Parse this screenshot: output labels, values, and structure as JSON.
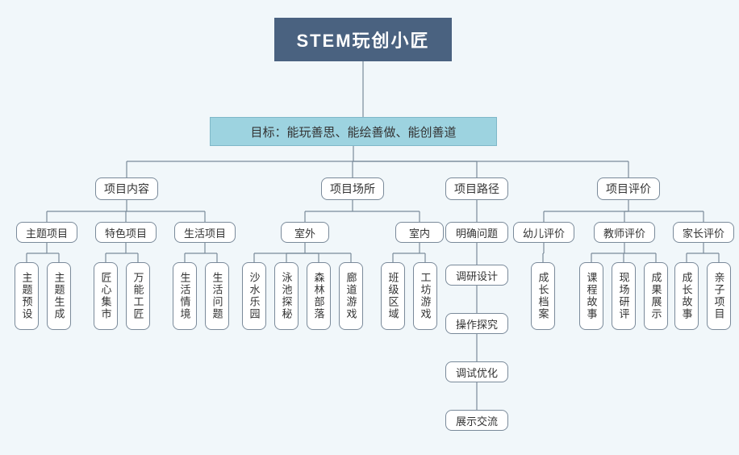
{
  "type": "tree",
  "background_color": "#f1f7fa",
  "connector_color": "#7a8a9a",
  "root": {
    "label": "STEM玩创小匠",
    "bg": "#4a6280",
    "fg": "#ffffff",
    "fontsize": 22
  },
  "goal": {
    "label": "目标：能玩善思、能绘善做、能创善道",
    "bg": "#9dd3e0",
    "fg": "#333333",
    "fontsize": 15
  },
  "categories": [
    {
      "label": "项目内容",
      "children": [
        {
          "label": "主题项目",
          "leaves": [
            "主题预设",
            "主题生成"
          ]
        },
        {
          "label": "特色项目",
          "leaves": [
            "匠心集市",
            "万能工匠"
          ]
        },
        {
          "label": "生活项目",
          "leaves": [
            "生活情境",
            "生活问题"
          ]
        }
      ]
    },
    {
      "label": "项目场所",
      "children": [
        {
          "label": "室外",
          "leaves": [
            "沙水乐园",
            "泳池探秘",
            "森林部落",
            "廊道游戏"
          ]
        },
        {
          "label": "室内",
          "leaves": [
            "班级区域",
            "工坊游戏"
          ]
        }
      ]
    },
    {
      "label": "项目路径",
      "children": [
        {
          "label": "明确问题",
          "chain": [
            "调研设计",
            "操作探究",
            "调试优化",
            "展示交流"
          ]
        }
      ]
    },
    {
      "label": "项目评价",
      "children": [
        {
          "label": "幼儿评价",
          "leaves": [
            "成长档案"
          ]
        },
        {
          "label": "教师评价",
          "leaves": [
            "课程故事",
            "现场研评",
            "成果展示"
          ]
        },
        {
          "label": "家长评价",
          "leaves": [
            "成长故事",
            "亲子项目"
          ]
        }
      ]
    }
  ],
  "node_style": {
    "border_color": "#7a8a9a",
    "border_radius": 8,
    "bg": "#ffffff",
    "fg": "#333333"
  }
}
